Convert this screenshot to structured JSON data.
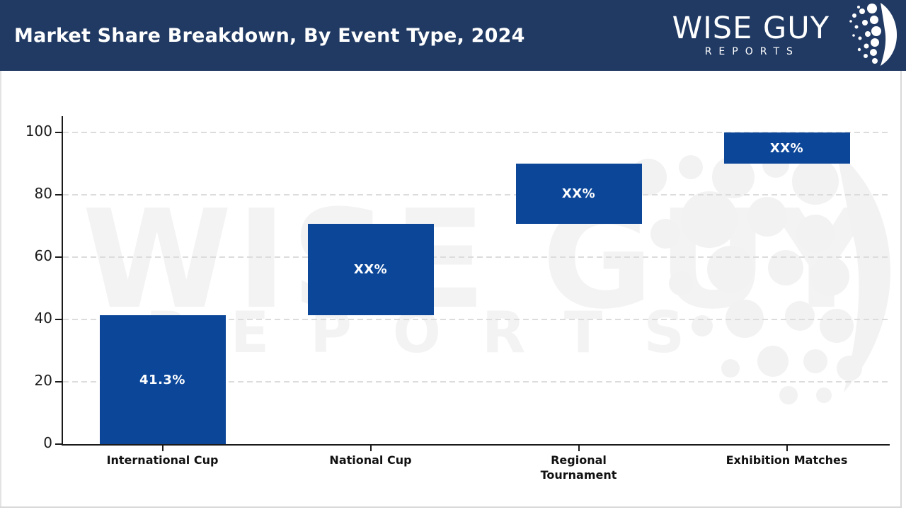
{
  "header": {
    "title": "Market Share Breakdown, By Event Type, 2024",
    "logo": {
      "line1": "WISE GUY",
      "line2": "REPORTS"
    }
  },
  "watermark": {
    "line1": "WISE GUY",
    "line2": "REPORTS"
  },
  "chart_data": {
    "type": "waterfall",
    "title": "Market Share Breakdown, By Event Type, 2024",
    "categories": [
      "International Cup",
      "National Cup",
      "Regional Tournament",
      "Exhibition Matches"
    ],
    "segments": [
      {
        "label": "International Cup",
        "label_display": "International Cup",
        "start": 0,
        "end": 41.3,
        "display": "41.3%"
      },
      {
        "label": "National Cup",
        "label_display": "National Cup",
        "start": 41.3,
        "end": 70.6,
        "display": "XX%"
      },
      {
        "label": "Regional Tournament",
        "label_display": "Regional\nTournament",
        "start": 70.6,
        "end": 90,
        "display": "XX%"
      },
      {
        "label": "Exhibition Matches",
        "label_display": "Exhibition Matches",
        "start": 90,
        "end": 100,
        "display": "XX%"
      }
    ],
    "yticks": [
      0,
      20,
      40,
      60,
      80,
      100
    ],
    "ylim": [
      0,
      105
    ],
    "xlabel": "",
    "ylabel": "",
    "legend": "none",
    "grid": "horizontal-dashed",
    "bar_color": "#0B4699",
    "gridline_color": "#dcdcdc",
    "label_color": "#ffffff",
    "header_color": "#213A63"
  }
}
